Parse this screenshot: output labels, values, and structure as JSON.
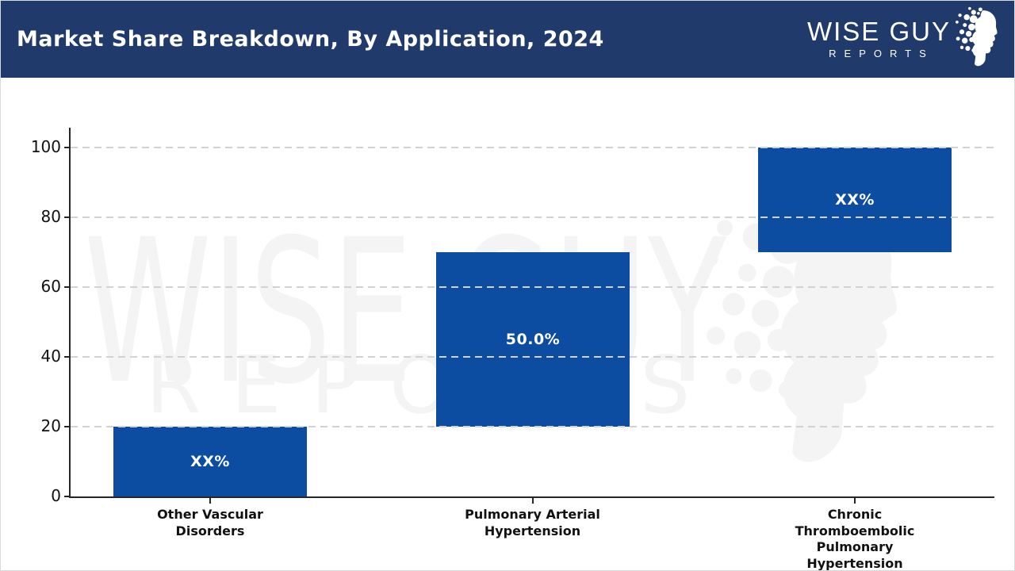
{
  "header": {
    "title": "Market Share Breakdown, By Application, 2024",
    "logo": {
      "name_top": "WISE GUY",
      "name_bottom": "REPORTS"
    }
  },
  "watermark": {
    "text_top": "WISE GUY",
    "text_bottom": "REPORTS"
  },
  "chart_data": {
    "type": "bar",
    "variant": "floating-segment waterfall-style market share bars",
    "title": "Market Share Breakdown, By Application, 2024",
    "categories": [
      "Other Vascular\nDisorders",
      "Pulmonary Arterial\nHypertension",
      "Chronic\nThromboembolic\nPulmonary\nHypertension"
    ],
    "bars": [
      {
        "category": "Other Vascular Disorders",
        "segment_start": 0,
        "segment_end": 20,
        "label": "XX%"
      },
      {
        "category": "Pulmonary Arterial Hypertension",
        "segment_start": 20,
        "segment_end": 70,
        "label": "50.0%"
      },
      {
        "category": "Chronic Thromboembolic Pulmonary Hypertension",
        "segment_start": 70,
        "segment_end": 100,
        "label": "XX%"
      }
    ],
    "yticks": [
      0,
      20,
      40,
      60,
      80,
      100
    ],
    "ylim": [
      0,
      105.8
    ],
    "xlabel": "",
    "ylabel": "",
    "grid": "horizontal dashed gridlines drawn over bars",
    "legend": "none"
  },
  "colors": {
    "header_bg": "#1f3a6b",
    "bar_fill": "#0d4da1",
    "bar_label_text": "#ffffff",
    "grid_line": "#d4d4d4",
    "axis_line": "#262626",
    "tick_text": "#111111",
    "watermark": "#f4f4f4",
    "page_border": "#d9d9d9"
  }
}
